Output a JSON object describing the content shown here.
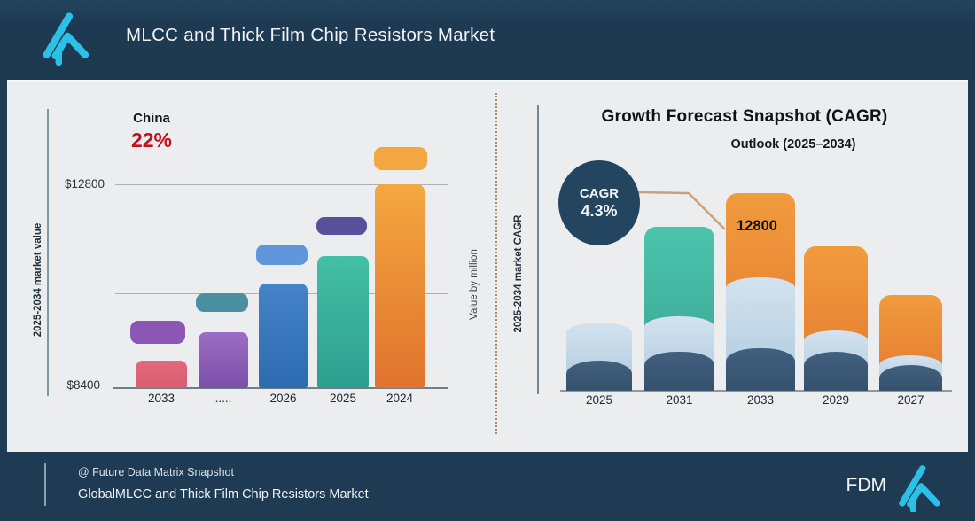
{
  "header": {
    "title": "MLCC and Thick Film Chip Resistors Market"
  },
  "footer": {
    "credit": "@ Future Data Matrix Snapshot",
    "subtitle": "GlobalMLCC and Thick Film Chip Resistors Market",
    "brand": "FDM"
  },
  "colors": {
    "header_bg": "#1f3c53",
    "canvas_bg": "#ebedee",
    "logo_cyan": "#2bc1e7",
    "accent_red": "#c0131f",
    "callout_navy": "#24455f",
    "connector_tan": "#c9a07e",
    "divider_dots": "#ad8a68"
  },
  "chart_data": [
    {
      "id": "market-value-by-year",
      "type": "bar",
      "annotation": {
        "label": "China",
        "value": "22%",
        "value_color": "#c0131f"
      },
      "ylabel_left": "2025-2034 market value",
      "ylabel_right": "Value by million",
      "categories": [
        "2033",
        ".....",
        "2026",
        "2025",
        "2024"
      ],
      "yticks": [
        "$8400",
        "$12800"
      ],
      "axis": {
        "min": 8400,
        "max": 12800,
        "gridlines": [
          10600,
          12800
        ],
        "grid": true
      },
      "legend": "none",
      "series": [
        {
          "name": "market value (bar)",
          "values": [
            9000,
            9600,
            10650,
            11250,
            12800
          ]
        },
        {
          "name": "floating segment",
          "ranges": [
            [
              9350,
              9850
            ],
            [
              10050,
              10450
            ],
            [
              11050,
              11500
            ],
            [
              11700,
              12100
            ],
            [
              13100,
              13600
            ]
          ]
        }
      ],
      "bar_gradients": [
        [
          "#e4687e",
          "#d95d6f"
        ],
        [
          "#9d6dc5",
          "#7b50a8"
        ],
        [
          "#4583c8",
          "#2d6bb1"
        ],
        [
          "#43c0a5",
          "#2e9d8e"
        ],
        [
          "#f4a740",
          "#e0732d"
        ]
      ],
      "cap_colors": [
        "#8b57b4",
        "#4b8fa0",
        "#6096dc",
        "#59509c",
        "#f4a641"
      ]
    },
    {
      "id": "growth-forecast-cagr",
      "type": "stacked-bar",
      "title": "Growth Forecast Snapshot (CAGR)",
      "subtitle": "Outlook (2025–2034)",
      "ylabel": "2025-2034 market CAGR",
      "callout": {
        "label": "CAGR",
        "value": "4.3%"
      },
      "data_label": {
        "category": "2033",
        "text": "12800"
      },
      "categories": [
        "2025",
        "2031",
        "2033",
        "2029",
        "2027"
      ],
      "units": "relative height (px), no numeric axis shown",
      "series": [
        {
          "name": "base segment (dark navy)",
          "values": [
            34,
            44,
            48,
            44,
            29
          ]
        },
        {
          "name": "middle segment (light blue)",
          "values": [
            43,
            40,
            80,
            24,
            11
          ]
        },
        {
          "name": "top segment",
          "values": [
            0,
            101,
            95,
            95,
            68
          ]
        }
      ],
      "segment_colors": {
        "base": [
          "#41607f",
          "#35516c"
        ],
        "mid": [
          "#d3e2ee",
          "#aec9df"
        ],
        "tops": [
          null,
          [
            "#4cc4ad",
            "#38a391"
          ],
          [
            "#f19b3e",
            "#e2782e"
          ],
          [
            "#f19b3e",
            "#e2782e"
          ],
          [
            "#f19b3e",
            "#e2782e"
          ]
        ]
      },
      "legend_position": "none"
    }
  ]
}
